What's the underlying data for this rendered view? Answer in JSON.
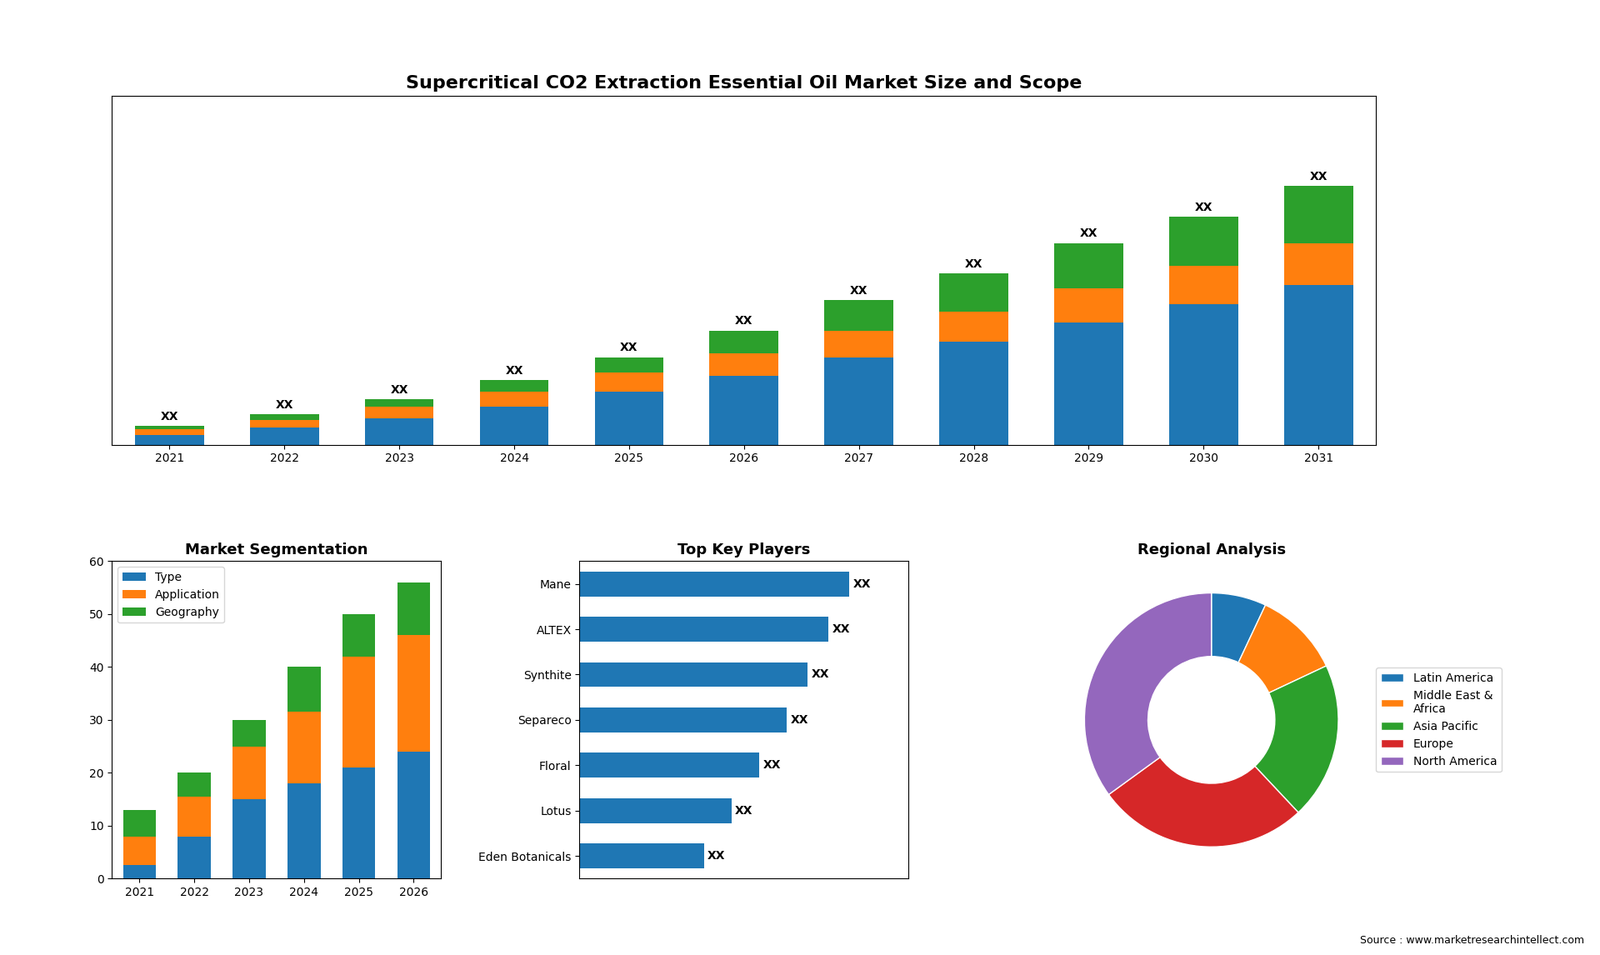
{
  "chart_data": [
    {
      "type": "bar",
      "title": "Supercritical CO2 Extraction Essential Oil Market Size and Scope",
      "categories": [
        "2021",
        "2022",
        "2023",
        "2024",
        "2025",
        "2026",
        "2027",
        "2028",
        "2029",
        "2030",
        "2031"
      ],
      "stacked": true,
      "series": [
        {
          "values": [
            2.5,
            4.5,
            7,
            10,
            14,
            18,
            23,
            27,
            32,
            37,
            42
          ]
        },
        {
          "values": [
            1.5,
            2,
            3,
            4,
            5,
            6,
            7,
            8,
            9,
            10,
            11
          ]
        },
        {
          "values": [
            1,
            1.5,
            2,
            3,
            4,
            6,
            8,
            10,
            12,
            13,
            15
          ],
          "value_labels": [
            "XX",
            "XX",
            "XX",
            "XX",
            "XX",
            "XX",
            "XX",
            "XX",
            "XX",
            "XX",
            "XX"
          ]
        }
      ],
      "data_labels": true,
      "ylim": [
        0,
        91.8
      ],
      "tick_labels": "x"
    },
    {
      "type": "bar",
      "title": "Market Segmentation",
      "categories": [
        "2021",
        "2022",
        "2023",
        "2024",
        "2025",
        "2026"
      ],
      "stacked": true,
      "series": [
        {
          "name": "Type",
          "values": [
            2.5,
            8,
            15,
            18,
            21,
            24
          ]
        },
        {
          "name": "Application",
          "values": [
            5.5,
            7.5,
            10,
            13.5,
            21,
            22
          ]
        },
        {
          "name": "Geography",
          "values": [
            5,
            4.5,
            5,
            8.5,
            8,
            10
          ]
        }
      ],
      "ylim": [
        0,
        60
      ],
      "yticks": [
        0,
        10,
        20,
        30,
        40,
        50,
        60
      ],
      "legend": "upper left"
    },
    {
      "type": "bar",
      "title": "Top Key Players",
      "orientation": "horizontal",
      "categories": [
        "Mane",
        "ALTEX",
        "Synthite",
        "Separeco",
        "Floral",
        "Lotus",
        "Eden Botanicals"
      ],
      "values": [
        0.78,
        0.72,
        0.66,
        0.6,
        0.52,
        0.44,
        0.36
      ],
      "value_labels": [
        "XX",
        "XX",
        "XX",
        "XX",
        "XX",
        "XX",
        "XX"
      ],
      "data_labels": true,
      "xlim": [
        0,
        0.9516
      ],
      "tick_labels": "y"
    },
    {
      "type": "pie",
      "title": "Regional Analysis",
      "categories": [
        "Latin America",
        "Middle East &\nAfrica",
        "Asia Pacific",
        "Europe",
        "North America"
      ],
      "values": [
        7,
        11,
        20,
        27,
        35
      ],
      "legend": "center left",
      "annotations": [
        "Source : www.marketresearchintellect.com"
      ]
    }
  ]
}
